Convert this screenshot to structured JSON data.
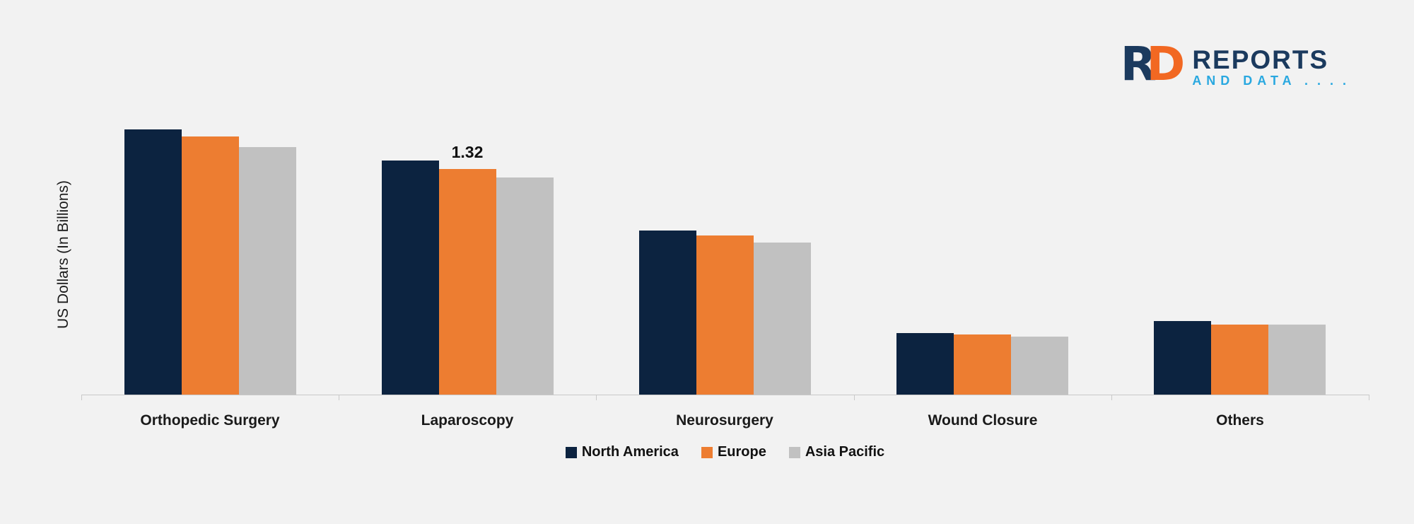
{
  "logo": {
    "mark_r": "R",
    "mark_d": "D",
    "title": "REPORTS",
    "subtitle": "AND DATA",
    "subtitle_dots": ". . . .",
    "colors": {
      "navy": "#1b3a5e",
      "orange": "#f26822",
      "light_blue": "#29a8e0"
    }
  },
  "chart_data": {
    "type": "bar",
    "title": "",
    "xlabel": "",
    "ylabel": "US Dollars (In Billions)",
    "categories": [
      "Orthopedic Surgery",
      "Laparoscopy",
      "Neurosurgery",
      "Wound Closure",
      "Others"
    ],
    "series": [
      {
        "name": "North America",
        "color": "#0c2340",
        "values": [
          1.55,
          1.37,
          0.96,
          0.36,
          0.43
        ]
      },
      {
        "name": "Europe",
        "color": "#ed7d31",
        "values": [
          1.51,
          1.32,
          0.93,
          0.35,
          0.41
        ]
      },
      {
        "name": "Asia Pacific",
        "color": "#c1c1c1",
        "values": [
          1.45,
          1.27,
          0.89,
          0.34,
          0.41
        ]
      }
    ],
    "data_labels": [
      {
        "category": "Laparoscopy",
        "series": "Europe",
        "text": "1.32"
      }
    ],
    "ylim": [
      0,
      1.95
    ],
    "grid": false,
    "legend_position": "bottom",
    "background_color": "#f2f2f2",
    "axis_color": "#c9c9c9"
  }
}
